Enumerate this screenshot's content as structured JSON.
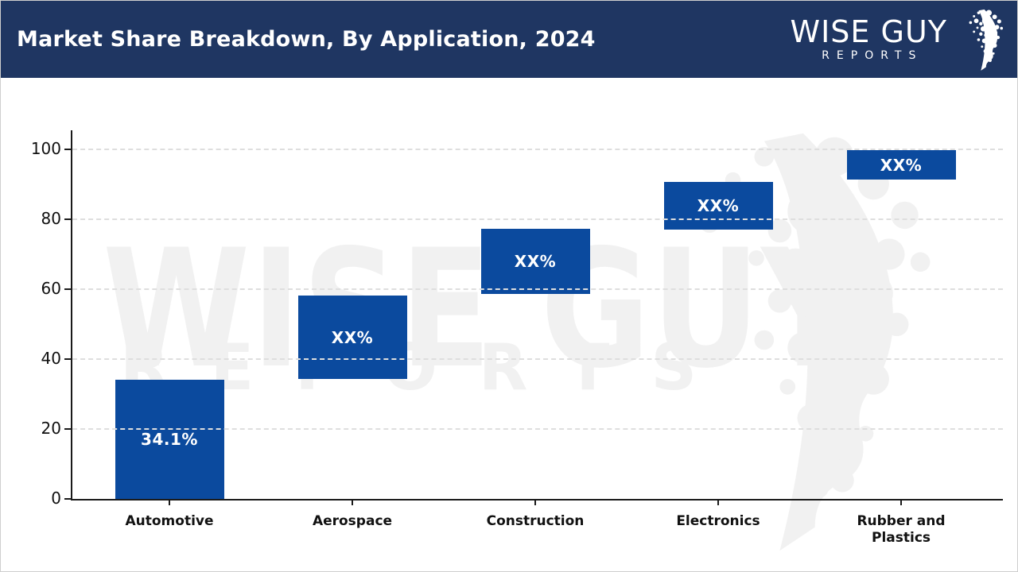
{
  "header": {
    "title": "Market Share Breakdown, By Application, 2024",
    "logo": {
      "line1": "WISE GUY",
      "line2": "REPORTS"
    }
  },
  "watermark": {
    "line1": "WISE GUY",
    "line2": "REPORTS"
  },
  "chart_data": {
    "type": "bar",
    "subtype": "waterfall-stacked-percent",
    "title": "Market Share Breakdown, By Application, 2024",
    "categories": [
      "Automotive",
      "Aerospace",
      "Construction",
      "Electronics",
      "Rubber and Plastics"
    ],
    "segments": [
      {
        "category": "Automotive",
        "start": 0,
        "end": 34.1,
        "label": "34.1%"
      },
      {
        "category": "Aerospace",
        "start": 34.3,
        "end": 58.1,
        "label": "XX%"
      },
      {
        "category": "Construction",
        "start": 58.6,
        "end": 77.2,
        "label": "XX%"
      },
      {
        "category": "Electronics",
        "start": 77.0,
        "end": 90.8,
        "label": "XX%"
      },
      {
        "category": "Rubber and Plastics",
        "start": 91.3,
        "end": 99.8,
        "label": "XX%"
      }
    ],
    "yticks": [
      0,
      20,
      40,
      60,
      80,
      100
    ],
    "ylim": [
      0,
      105.5
    ],
    "xlabel": "",
    "ylabel": "",
    "grid": "horizontal-dashed",
    "legend": "none",
    "bar_color": "#0b4a9e",
    "bar_label_color": "#ffffff",
    "header_color": "#1f3662",
    "watermark_color": "#f1f1f1"
  }
}
